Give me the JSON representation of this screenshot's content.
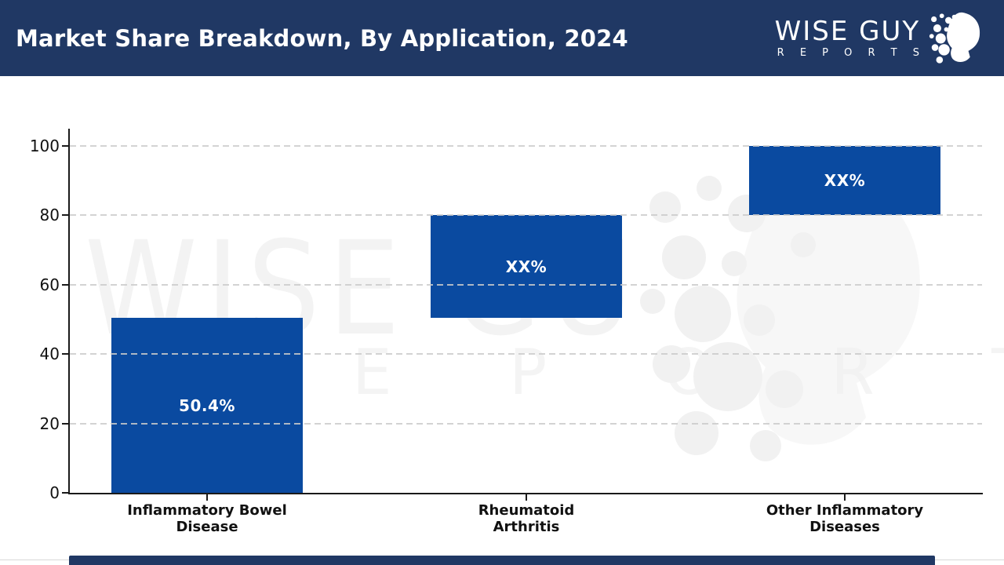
{
  "header": {
    "title": "Market Share Breakdown, By Application, 2024"
  },
  "logo": {
    "line1": "WISE GUY",
    "line2": "R E P O R T S"
  },
  "watermark": {
    "line1": "WISE GU",
    "line2": "R E P O R T S"
  },
  "colors": {
    "header_navy": "#203864",
    "bar_blue": "#0a4aa0",
    "bar_label_white": "#ffffff",
    "grid_gray": "#cbcbcb",
    "watermark_gray": "#f3f3f3",
    "axis_black": "#1a1a1a",
    "footer_navy": "#203864"
  },
  "chart_data": {
    "type": "bar",
    "variant": "stacked-waterfall-percentage",
    "title": "Market Share Breakdown, By Application, 2024",
    "categories": [
      "Inflammatory Bowel Disease",
      "Rheumatoid Arthritis",
      "Other Inflammatory Diseases"
    ],
    "category_lines": [
      [
        "Inflammatory Bowel",
        "Disease"
      ],
      [
        "Rheumatoid",
        "Arthritis"
      ],
      [
        "Other Inflammatory",
        "Diseases"
      ]
    ],
    "bars": [
      {
        "label": "50.4%",
        "start": 0,
        "end": 50.4,
        "value": 50.4
      },
      {
        "label": "XX%",
        "start": 50.4,
        "end": 80,
        "value": null
      },
      {
        "label": "XX%",
        "start": 80,
        "end": 100,
        "value": null
      }
    ],
    "ylim": [
      0,
      100
    ],
    "yticks": [
      0,
      20,
      40,
      60,
      80,
      100
    ],
    "xlabel": "",
    "ylabel": "",
    "grid": "horizontal-dashed",
    "legend": "none",
    "bar_color": "#0a4aa0",
    "bar_label_color": "#ffffff"
  }
}
